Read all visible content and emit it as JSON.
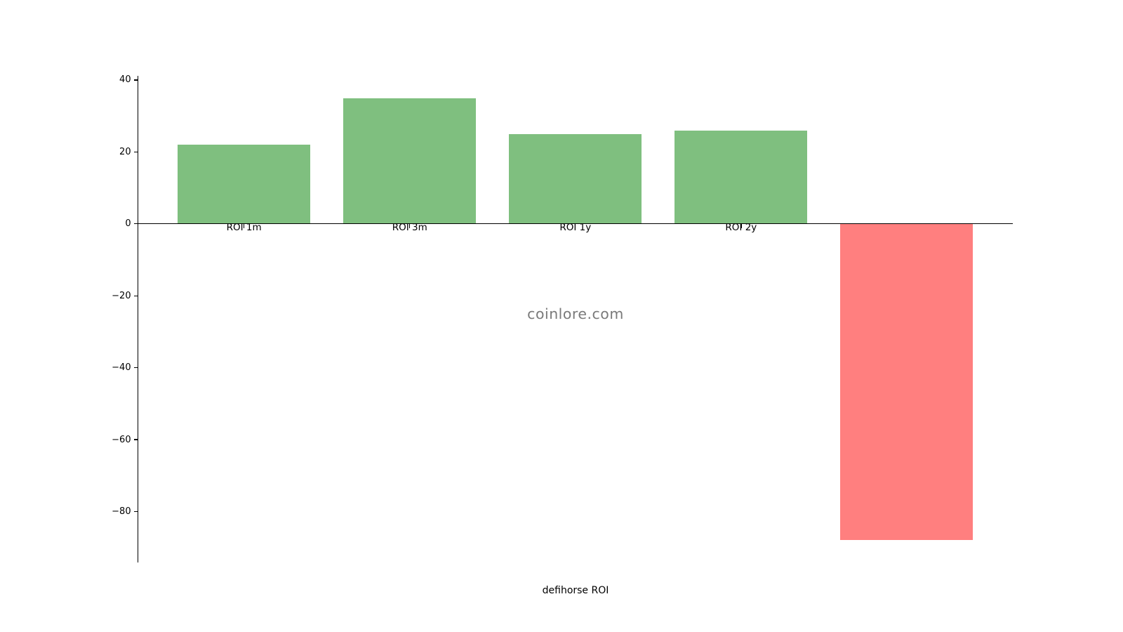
{
  "watermark": "coinlore.com",
  "chart_data": {
    "type": "bar",
    "xlabel": "defihorse ROI",
    "categories": [
      "ROI 1m",
      "ROI 3m",
      "ROI 1y",
      "ROI 2y",
      ""
    ],
    "values": [
      22,
      35,
      25,
      26,
      -88
    ],
    "bar_colors": [
      "#7fbf7f",
      "#7fbf7f",
      "#7fbf7f",
      "#7fbf7f",
      "#ff7f7f"
    ],
    "positive_color": "#7fbf7f",
    "negative_color": "#ff7f7f",
    "yticks": [
      40,
      20,
      0,
      -20,
      -40,
      -60,
      -80
    ],
    "yticklabels": [
      "40",
      "20",
      "0",
      "−20",
      "−40",
      "−60",
      "−80"
    ],
    "ylim": [
      -94.15,
      41.15
    ],
    "xlim": [
      -0.64,
      4.64
    ],
    "bar_width": 0.8,
    "grid": false,
    "legend": null,
    "axis_color": "#000000",
    "text_color": "#000000",
    "watermark_color": "#7a7a7a"
  }
}
